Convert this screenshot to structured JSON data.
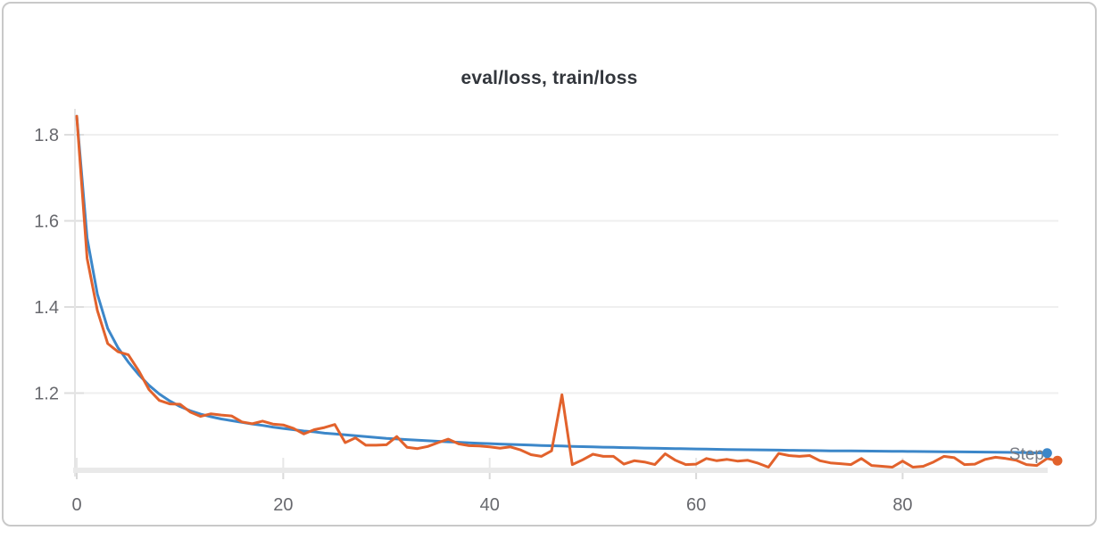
{
  "chart_data": {
    "type": "line",
    "title": "eval/loss, train/loss",
    "xlabel": "Step",
    "x_start": 0,
    "x_step": 1,
    "xlim": [
      0,
      95
    ],
    "ylim": [
      1.02,
      1.86
    ],
    "x_ticks": [
      0,
      20,
      40,
      60,
      80
    ],
    "y_ticks": [
      1.8,
      1.6,
      1.4,
      1.2
    ],
    "grid": "horizontal-only",
    "legend_position": "none",
    "series": [
      {
        "name": "eval/loss",
        "color": "#3c87c9",
        "endpoint_dot": true,
        "values": [
          1.843,
          1.56,
          1.43,
          1.35,
          1.305,
          1.272,
          1.243,
          1.218,
          1.198,
          1.182,
          1.169,
          1.159,
          1.151,
          1.145,
          1.14,
          1.136,
          1.132,
          1.128,
          1.125,
          1.121,
          1.118,
          1.115,
          1.112,
          1.11,
          1.107,
          1.105,
          1.103,
          1.101,
          1.099,
          1.097,
          1.095,
          1.0935,
          1.092,
          1.0906,
          1.0893,
          1.088,
          1.0868,
          1.0857,
          1.0846,
          1.0836,
          1.0826,
          1.0817,
          1.0808,
          1.08,
          1.0792,
          1.0784,
          1.0777,
          1.077,
          1.0763,
          1.0757,
          1.0751,
          1.0745,
          1.0739,
          1.0734,
          1.0729,
          1.0724,
          1.0719,
          1.0714,
          1.071,
          1.0706,
          1.0702,
          1.0698,
          1.0694,
          1.069,
          1.0687,
          1.0684,
          1.0681,
          1.0678,
          1.0675,
          1.0672,
          1.0669,
          1.0666,
          1.0663,
          1.066,
          1.0658,
          1.0656,
          1.0654,
          1.0652,
          1.065,
          1.0648,
          1.0646,
          1.0644,
          1.0642,
          1.064,
          1.0638,
          1.0636,
          1.0634,
          1.0632,
          1.063,
          1.0627,
          1.0624,
          1.0621,
          1.0617,
          1.0612,
          1.0607
        ]
      },
      {
        "name": "train/loss",
        "color": "#e2622c",
        "endpoint_dot": true,
        "values": [
          1.843,
          1.513,
          1.392,
          1.315,
          1.296,
          1.289,
          1.252,
          1.208,
          1.183,
          1.175,
          1.174,
          1.156,
          1.146,
          1.152,
          1.149,
          1.147,
          1.133,
          1.129,
          1.135,
          1.128,
          1.126,
          1.118,
          1.105,
          1.115,
          1.12,
          1.127,
          1.085,
          1.096,
          1.079,
          1.079,
          1.08,
          1.099,
          1.074,
          1.071,
          1.076,
          1.085,
          1.093,
          1.082,
          1.078,
          1.077,
          1.075,
          1.072,
          1.075,
          1.068,
          1.057,
          1.053,
          1.066,
          1.196,
          1.034,
          1.045,
          1.058,
          1.053,
          1.053,
          1.035,
          1.043,
          1.04,
          1.034,
          1.059,
          1.044,
          1.034,
          1.035,
          1.048,
          1.043,
          1.046,
          1.042,
          1.044,
          1.037,
          1.028,
          1.06,
          1.055,
          1.053,
          1.055,
          1.043,
          1.038,
          1.036,
          1.034,
          1.048,
          1.032,
          1.03,
          1.028,
          1.042,
          1.028,
          1.03,
          1.04,
          1.053,
          1.05,
          1.034,
          1.035,
          1.046,
          1.051,
          1.048,
          1.044,
          1.034,
          1.032,
          1.048,
          1.043
        ]
      }
    ]
  }
}
